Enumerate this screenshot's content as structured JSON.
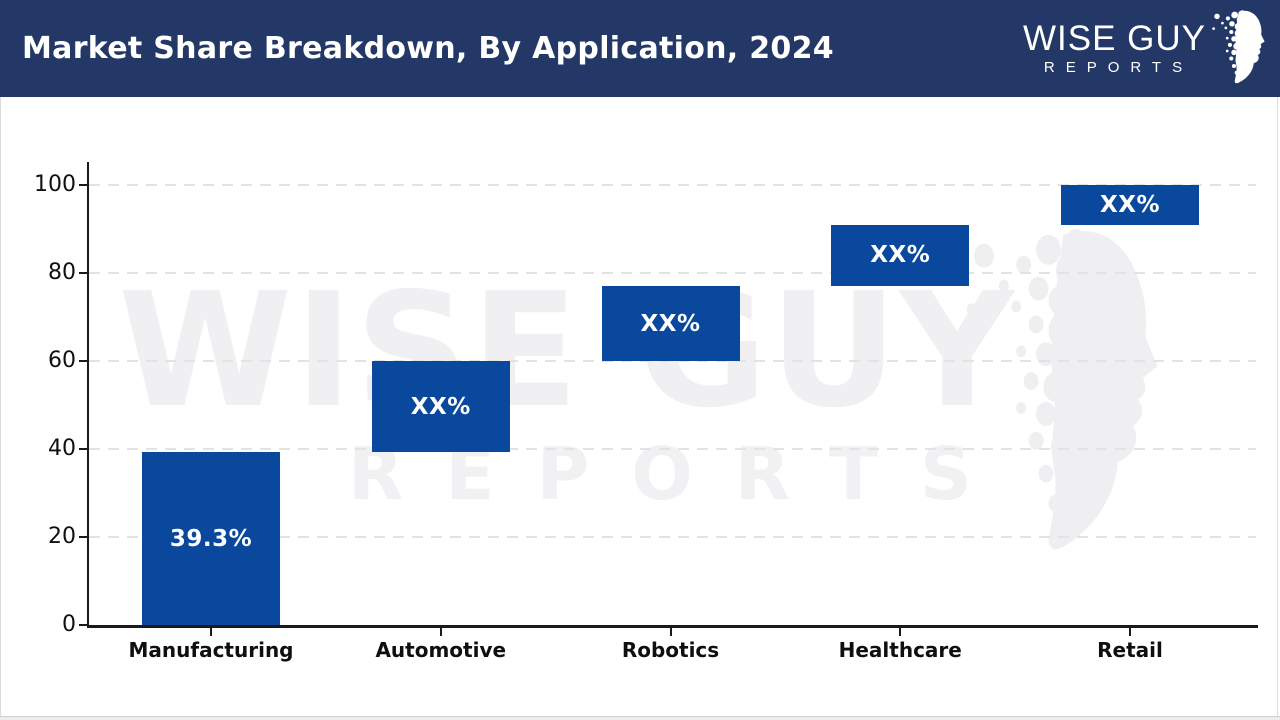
{
  "header": {
    "title": "Market Share Breakdown, By Application, 2024",
    "brand": {
      "name": "WISE GUY",
      "tagline": "REPORTS"
    }
  },
  "watermark": {
    "name": "WISE GUY",
    "tagline": "REPORTS"
  },
  "colors": {
    "header_bg": "#233866",
    "header_text": "#ffffff",
    "bar": "#09489c",
    "bar_label": "#ffffff",
    "axis": "#1a1a1a",
    "tick_label": "#111111",
    "grid": "#e3e3e3",
    "watermark": "#f0f0f2",
    "frame": "#cfcfcf"
  },
  "chart_data": {
    "type": "bar",
    "subtype": "waterfall",
    "title": "Market Share Breakdown, By Application, 2024",
    "categories": [
      "Manufacturing",
      "Automotive",
      "Robotics",
      "Healthcare",
      "Retail"
    ],
    "segments": [
      {
        "category": "Manufacturing",
        "start": 0,
        "end": 39.3,
        "label": "39.3%"
      },
      {
        "category": "Automotive",
        "start": 39.3,
        "end": 60,
        "label": "XX%"
      },
      {
        "category": "Robotics",
        "start": 60,
        "end": 77,
        "label": "XX%"
      },
      {
        "category": "Healthcare",
        "start": 77,
        "end": 91,
        "label": "XX%"
      },
      {
        "category": "Retail",
        "start": 91,
        "end": 100,
        "label": "XX%"
      }
    ],
    "yticks": [
      0,
      20,
      40,
      60,
      80,
      100
    ],
    "ylim": [
      0,
      105
    ],
    "xlabel": "",
    "ylabel": "",
    "grid": "horizontal-dashed",
    "legend": "none",
    "units": "percent market share"
  }
}
